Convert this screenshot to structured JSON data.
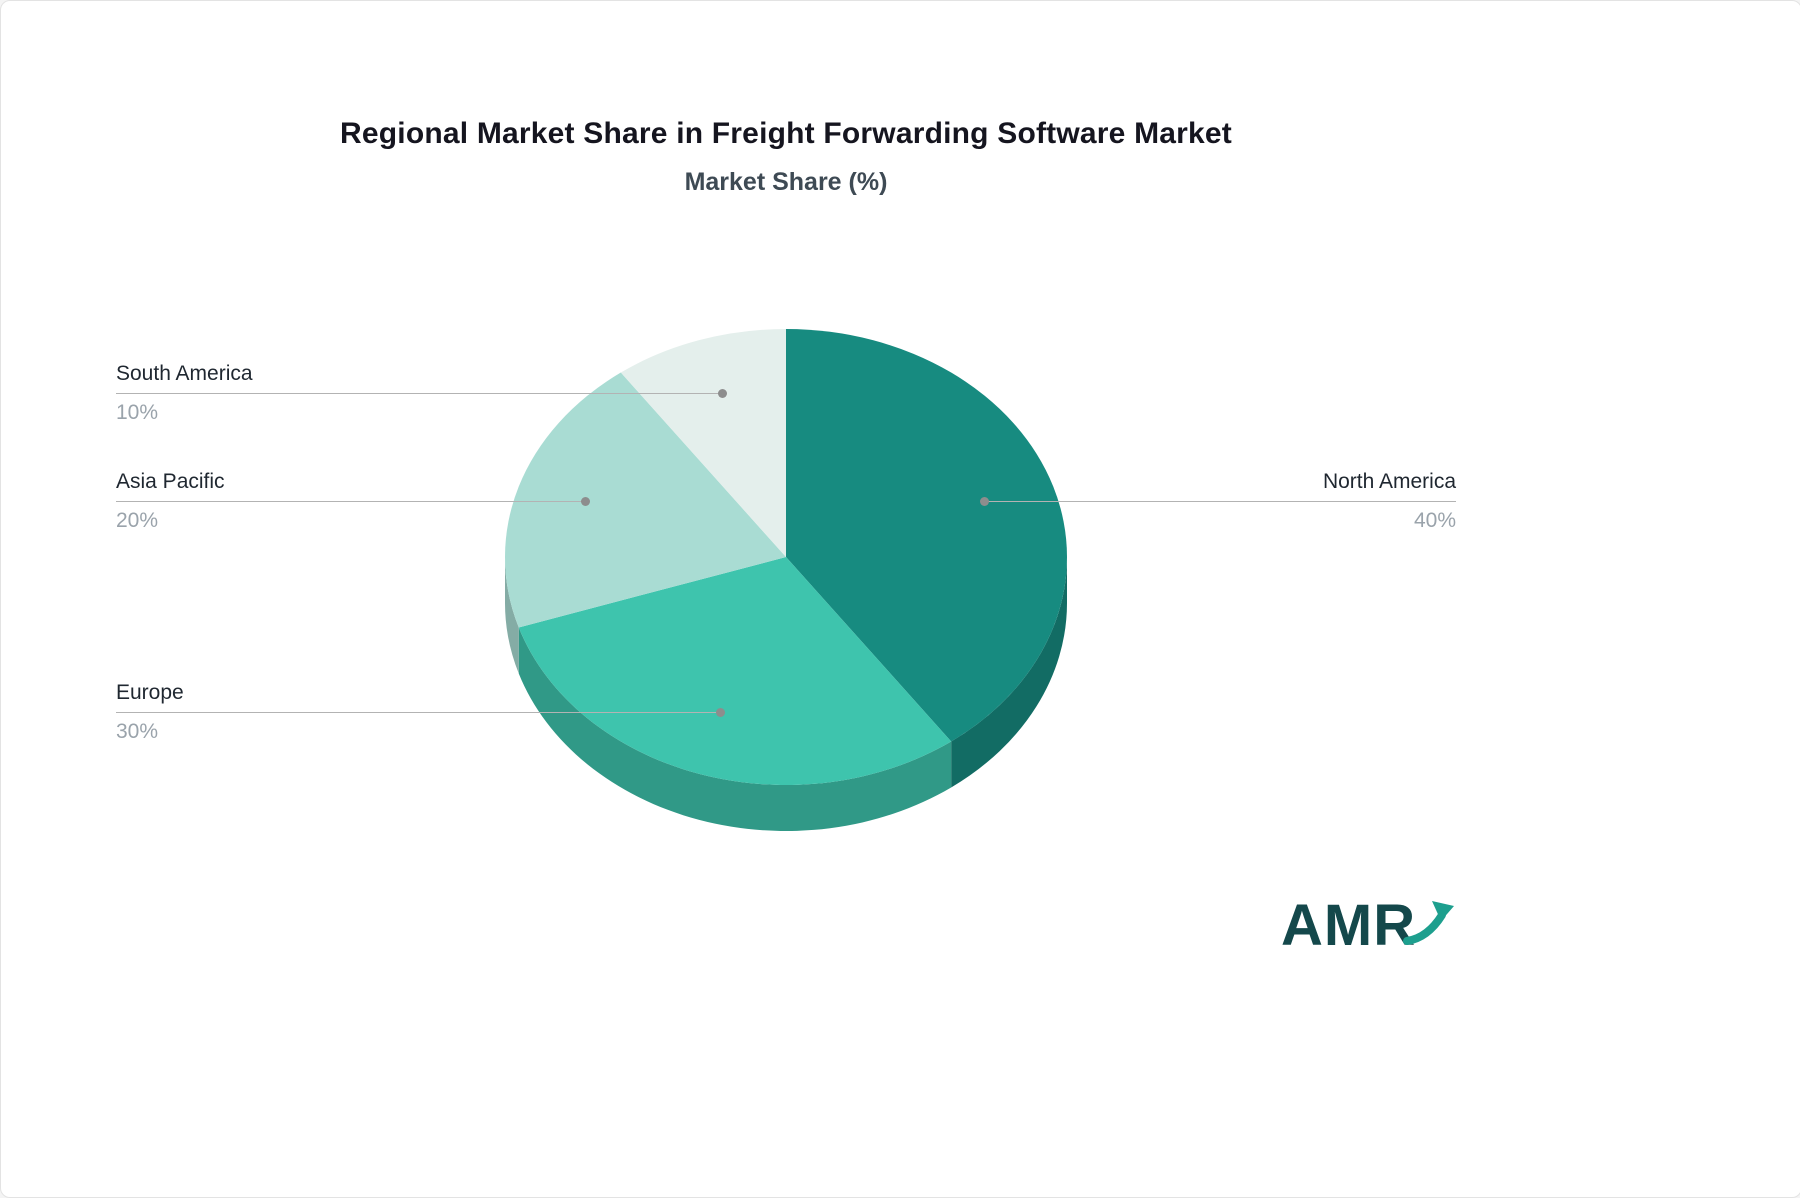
{
  "chart_data": {
    "type": "pie",
    "title": "Regional Market Share in Freight Forwarding Software Market",
    "subtitle": "Market Share (%)",
    "unit": "%",
    "labels": [
      "North America",
      "Europe",
      "Asia Pacific",
      "South America"
    ],
    "values": [
      40,
      30,
      20,
      10
    ],
    "value_labels": [
      "40%",
      "30%",
      "20%",
      "10%"
    ],
    "colors": [
      "#178b80",
      "#3ec4ad",
      "#a9dcd3",
      "#e4efec"
    ],
    "start_angle_deg": 0,
    "direction": "clockwise",
    "style": "3d",
    "legend_position": "callout-labels",
    "callout_line_color": "#b3b3b3",
    "label_color": "#1f2730",
    "value_color": "#9aa3ab"
  },
  "branding": {
    "logo_text": "AMR",
    "logo_color": "#14484b",
    "logo_arrow_color": "#1d9f8e"
  }
}
